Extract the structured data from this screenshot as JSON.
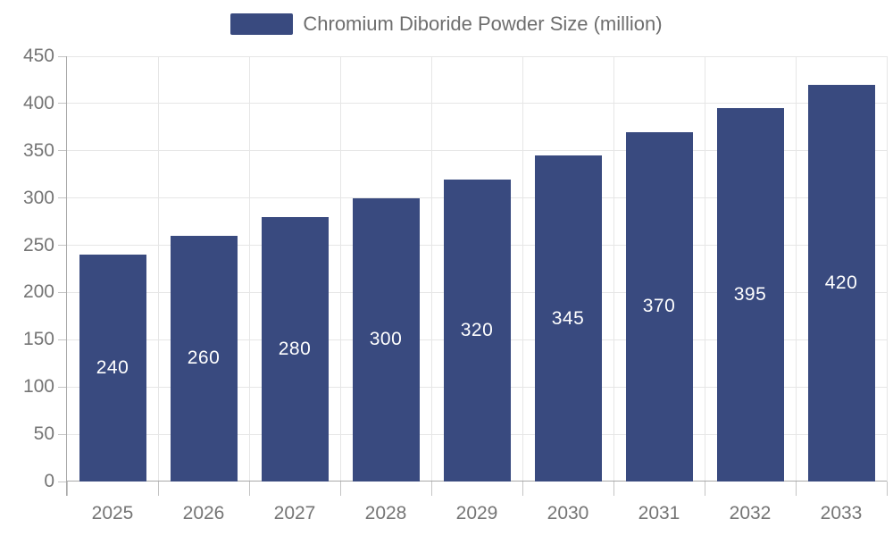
{
  "legend": {
    "entries": [
      "Chromium Diboride Powder Size (million)"
    ]
  },
  "colors": {
    "bar": "#394A7F",
    "grid": "#e6e6e6",
    "axis": "#a8a8a8",
    "tick": "#c4c4c4",
    "text": "#757575",
    "value_label": "#ffffff"
  },
  "chart_data": {
    "type": "bar",
    "title": "Chromium Diboride Powder Size (million)",
    "xlabel": "",
    "ylabel": "",
    "categories": [
      "2025",
      "2026",
      "2027",
      "2028",
      "2029",
      "2030",
      "2031",
      "2032",
      "2033"
    ],
    "values": [
      240,
      260,
      280,
      300,
      320,
      345,
      370,
      395,
      420
    ],
    "ylim": [
      0,
      450
    ],
    "ytick_step": 50,
    "yticks": [
      0,
      50,
      100,
      150,
      200,
      250,
      300,
      350,
      400,
      450
    ],
    "grid": true,
    "legend_position": "top-center",
    "bar_label_position": "inside-center",
    "bar_label_color": "#ffffff"
  }
}
